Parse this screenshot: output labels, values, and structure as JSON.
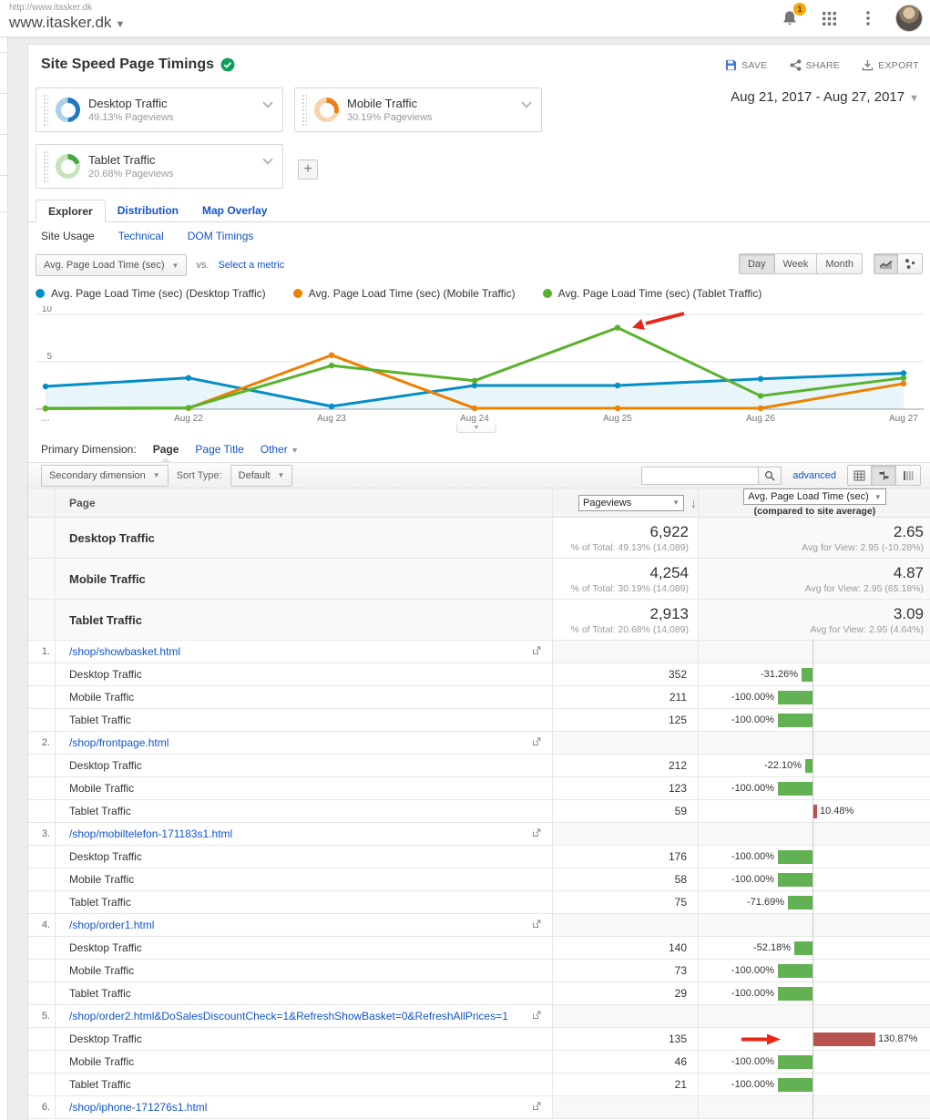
{
  "header": {
    "url": "http://www.itasker.dk",
    "account": "www.itasker.dk",
    "notification_count": "1"
  },
  "title": {
    "text": "Site Speed Page Timings"
  },
  "actions": {
    "save": "SAVE",
    "share": "SHARE",
    "export": "EXPORT",
    "date_range": "Aug 21, 2017 - Aug 27, 2017"
  },
  "segments": {
    "add_label": "+",
    "cards": [
      {
        "title": "Desktop Traffic",
        "sub": "49.13% Pageviews",
        "pct": 49.13,
        "color": "#2179c0",
        "color_light": "#abd0ea"
      },
      {
        "title": "Mobile Traffic",
        "sub": "30.19% Pageviews",
        "pct": 30.19,
        "color": "#e8821c",
        "color_light": "#f7d4ac"
      },
      {
        "title": "Tablet Traffic",
        "sub": "20.68% Pageviews",
        "pct": 20.68,
        "color": "#46a546",
        "color_light": "#c6e3bb"
      }
    ]
  },
  "tabs": {
    "items": [
      "Explorer",
      "Distribution",
      "Map Overlay"
    ]
  },
  "subtabs": {
    "items": [
      "Site Usage",
      "Technical",
      "DOM Timings"
    ]
  },
  "metric": {
    "selected": "Avg. Page Load Time (sec)",
    "vs": "vs.",
    "select_link": "Select a metric"
  },
  "granularity": {
    "items": [
      "Day",
      "Week",
      "Month"
    ],
    "active": "Day"
  },
  "chart_data": {
    "type": "line",
    "x": [
      "…",
      "Aug 22",
      "Aug 23",
      "Aug 24",
      "Aug 25",
      "Aug 26",
      "Aug 27"
    ],
    "ylim": [
      0,
      10
    ],
    "yticks": [
      5,
      10
    ],
    "grid": true,
    "legend_position": "top",
    "annotation": "red arrow pointing at Tablet Traffic peak on Aug 25",
    "series": [
      {
        "name": "Avg. Page Load Time (sec) (Desktop Traffic)",
        "color": "#058dc7",
        "fill": true,
        "values": [
          2.4,
          3.3,
          0.3,
          2.5,
          2.5,
          3.2,
          3.8
        ]
      },
      {
        "name": "Avg. Page Load Time (sec) (Mobile Traffic)",
        "color": "#ee8100",
        "values": [
          0.05,
          0.1,
          5.7,
          0.1,
          0.1,
          0.1,
          2.7
        ]
      },
      {
        "name": "Avg. Page Load Time (sec) (Tablet Traffic)",
        "color": "#59b22b",
        "values": [
          0.1,
          0.15,
          4.6,
          3.0,
          8.6,
          1.4,
          3.3
        ]
      }
    ]
  },
  "primary": {
    "label": "Primary Dimension:",
    "selected": "Page",
    "links": [
      "Page Title",
      "Other"
    ]
  },
  "table_toolbar": {
    "secondary": "Secondary dimension",
    "sort_label": "Sort Type:",
    "sort_value": "Default",
    "advanced": "advanced"
  },
  "table": {
    "col_page": "Page",
    "col_pageviews": "Pageviews",
    "col_avg": "Avg. Page Load Time (sec)",
    "col_avg_sub": "(compared to site average)",
    "summary": [
      {
        "label": "Desktop Traffic",
        "pageviews": "6,922",
        "pv_sub": "% of Total: 49.13% (14,089)",
        "avg": "2.65",
        "avg_sub": "Avg for View: 2.95 (-10.28%)"
      },
      {
        "label": "Mobile Traffic",
        "pageviews": "4,254",
        "pv_sub": "% of Total: 30.19% (14,089)",
        "avg": "4.87",
        "avg_sub": "Avg for View: 2.95 (65.18%)"
      },
      {
        "label": "Tablet Traffic",
        "pageviews": "2,913",
        "pv_sub": "% of Total: 20.68% (14,089)",
        "avg": "3.09",
        "avg_sub": "Avg for View: 2.95 (4.64%)"
      }
    ],
    "groups": [
      {
        "index": "1.",
        "page": "/shop/showbasket.html",
        "rows": [
          {
            "label": "Desktop Traffic",
            "pageviews": "352",
            "pct": -31.26,
            "pct_label": "-31.26%"
          },
          {
            "label": "Mobile Traffic",
            "pageviews": "211",
            "pct": -100,
            "pct_label": "-100.00%"
          },
          {
            "label": "Tablet Traffic",
            "pageviews": "125",
            "pct": -100,
            "pct_label": "-100.00%"
          }
        ]
      },
      {
        "index": "2.",
        "page": "/shop/frontpage.html",
        "rows": [
          {
            "label": "Desktop Traffic",
            "pageviews": "212",
            "pct": -22.1,
            "pct_label": "-22.10%"
          },
          {
            "label": "Mobile Traffic",
            "pageviews": "123",
            "pct": -100,
            "pct_label": "-100.00%"
          },
          {
            "label": "Tablet Traffic",
            "pageviews": "59",
            "pct": 10.48,
            "pct_label": "10.48%"
          }
        ]
      },
      {
        "index": "3.",
        "page": "/shop/mobiltelefon-171183s1.html",
        "rows": [
          {
            "label": "Desktop Traffic",
            "pageviews": "176",
            "pct": -100,
            "pct_label": "-100.00%"
          },
          {
            "label": "Mobile Traffic",
            "pageviews": "58",
            "pct": -100,
            "pct_label": "-100.00%"
          },
          {
            "label": "Tablet Traffic",
            "pageviews": "75",
            "pct": -71.69,
            "pct_label": "-71.69%"
          }
        ]
      },
      {
        "index": "4.",
        "page": "/shop/order1.html",
        "rows": [
          {
            "label": "Desktop Traffic",
            "pageviews": "140",
            "pct": -52.18,
            "pct_label": "-52.18%"
          },
          {
            "label": "Mobile Traffic",
            "pageviews": "73",
            "pct": -100,
            "pct_label": "-100.00%"
          },
          {
            "label": "Tablet Traffic",
            "pageviews": "29",
            "pct": -100,
            "pct_label": "-100.00%"
          }
        ]
      },
      {
        "index": "5.",
        "page": "/shop/order2.html&DoSalesDiscountCheck=1&RefreshShowBasket=0&RefreshAllPrices=1",
        "rows": [
          {
            "label": "Desktop Traffic",
            "pageviews": "135",
            "pct": 130.87,
            "pct_label": "130.87%",
            "arrow": true
          },
          {
            "label": "Mobile Traffic",
            "pageviews": "46",
            "pct": -100,
            "pct_label": "-100.00%"
          },
          {
            "label": "Tablet Traffic",
            "pageviews": "21",
            "pct": -100,
            "pct_label": "-100.00%"
          }
        ]
      },
      {
        "index": "6.",
        "page": "/shop/iphone-171276s1.html",
        "rows": []
      }
    ]
  },
  "colors": {
    "bar_green": "#62b152",
    "bar_red": "#b85450",
    "annotation_red": "#e8261a",
    "link_blue": "#1155cc"
  }
}
